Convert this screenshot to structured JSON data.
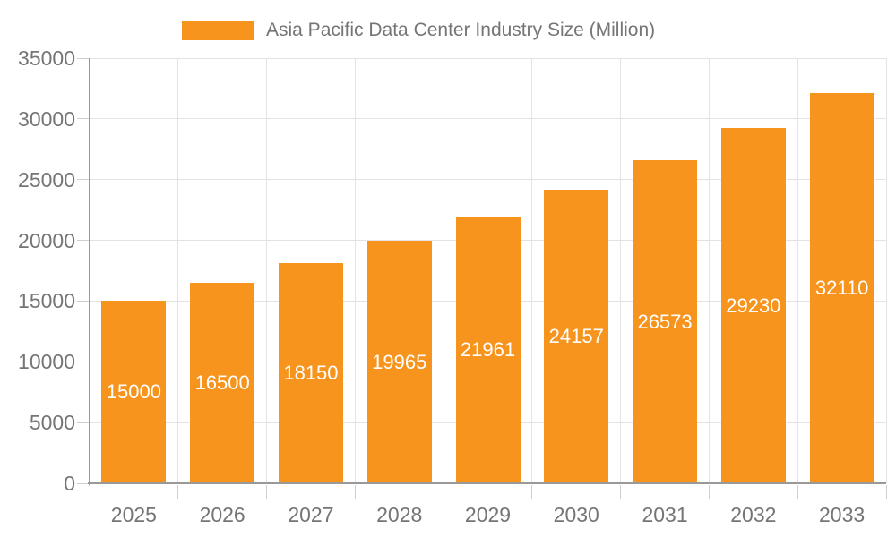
{
  "chart_data": {
    "type": "bar",
    "title": "Asia Pacific Data Center Industry Size (Million)",
    "series_name": "Asia Pacific Data Center Industry Size (Million)",
    "categories": [
      "2025",
      "2026",
      "2027",
      "2028",
      "2029",
      "2030",
      "2031",
      "2032",
      "2033"
    ],
    "values": [
      15000,
      16500,
      18150,
      19965,
      21961,
      24157,
      26573,
      29230,
      32110
    ],
    "bar_labels": [
      "15000",
      "16500",
      "18150",
      "19965",
      "21961",
      "24157",
      "26573",
      "29230",
      "32110"
    ],
    "xlabel": "",
    "ylabel": "",
    "ylim": [
      0,
      35000
    ],
    "ytick_step": 5000,
    "yticks": [
      0,
      5000,
      10000,
      15000,
      20000,
      25000,
      30000,
      35000
    ],
    "ytick_labels": [
      "0",
      "5000",
      "10000",
      "15000",
      "20000",
      "25000",
      "30000",
      "35000"
    ],
    "grid": true,
    "legend_position": "top",
    "colors": {
      "bar": "#F7941E",
      "bar_label": "#FFFFFF",
      "axis_line": "#999999",
      "grid_line": "#E3E3E3",
      "tick_line": "#CFCFCF",
      "text": "#757575",
      "background": "#FFFFFF"
    }
  }
}
